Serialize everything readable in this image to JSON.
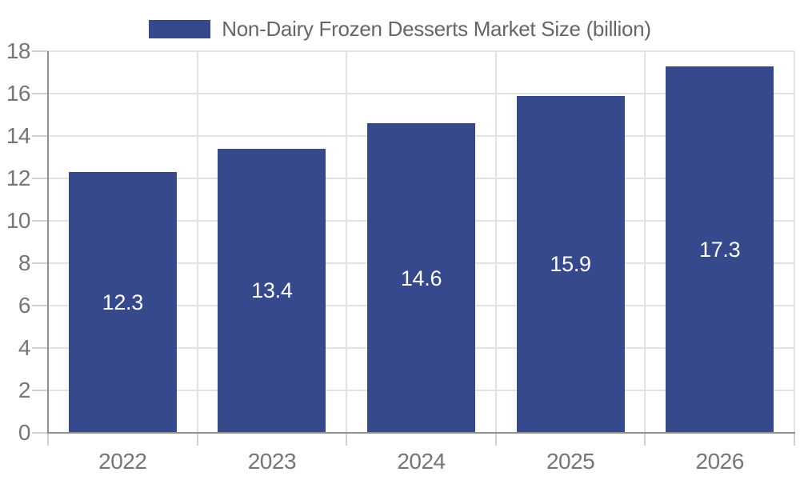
{
  "chart_data": {
    "type": "bar",
    "title": "Non-Dairy Frozen Desserts Market Size (billion)",
    "categories": [
      "2022",
      "2023",
      "2024",
      "2025",
      "2026"
    ],
    "values": [
      12.3,
      13.4,
      14.6,
      15.9,
      17.3
    ],
    "value_labels": [
      "12.3",
      "13.4",
      "14.6",
      "15.9",
      "17.3"
    ],
    "xlabel": "",
    "ylabel": "",
    "ylim": [
      0,
      18
    ],
    "ytick_step": 2,
    "yticks": [
      0,
      2,
      4,
      6,
      8,
      10,
      12,
      14,
      16,
      18
    ],
    "grid": true,
    "legend_position": "top",
    "legend_entries": [
      "Non-Dairy Frozen Desserts Market Size (billion)"
    ],
    "colors": {
      "bar": "#36498c",
      "grid": "#e2e2e2",
      "axis": "#8f8f8f",
      "tick": "#d0d0d0",
      "tick_label": "#767676",
      "legend_text": "#666666",
      "value_label": "#ffffff",
      "background": "#ffffff"
    }
  }
}
